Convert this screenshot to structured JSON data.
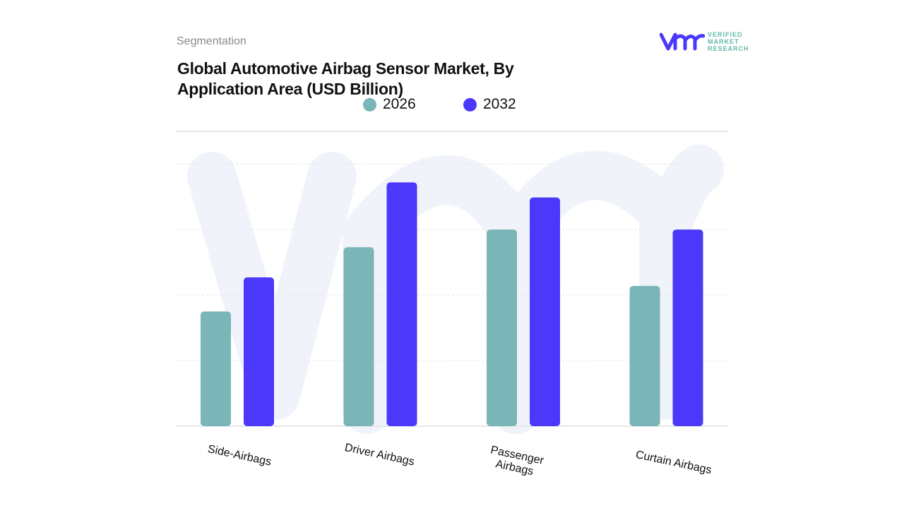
{
  "header": {
    "section": "Segmentation",
    "title": "Global Automotive Airbag Sensor Market, By Application Area (USD Billion)"
  },
  "logo": {
    "line1": "VERIFIED",
    "line2": "MARKET",
    "line3": "RESEARCH",
    "mark": "vmr"
  },
  "colors": {
    "2026": "#7ab5b8",
    "2032": "#4b38fb",
    "grid": "#e6e6ea",
    "watermark": "#f1f3fb"
  },
  "chart_data": {
    "type": "bar",
    "title": "Global Automotive Airbag Sensor Market, By Application Area (USD Billion)",
    "categories": [
      "Side-Airbags",
      "Driver Airbags",
      "Passenger Airbags",
      "Curtain Airbags"
    ],
    "series": [
      {
        "name": "2026",
        "values": [
          1.75,
          2.73,
          3.0,
          2.14
        ]
      },
      {
        "name": "2032",
        "values": [
          2.27,
          3.72,
          3.49,
          3.0
        ]
      }
    ],
    "ylim": [
      0,
      4.5
    ],
    "grid": true,
    "legend": "top-center",
    "note_units": "relative; no y-axis values printed"
  }
}
